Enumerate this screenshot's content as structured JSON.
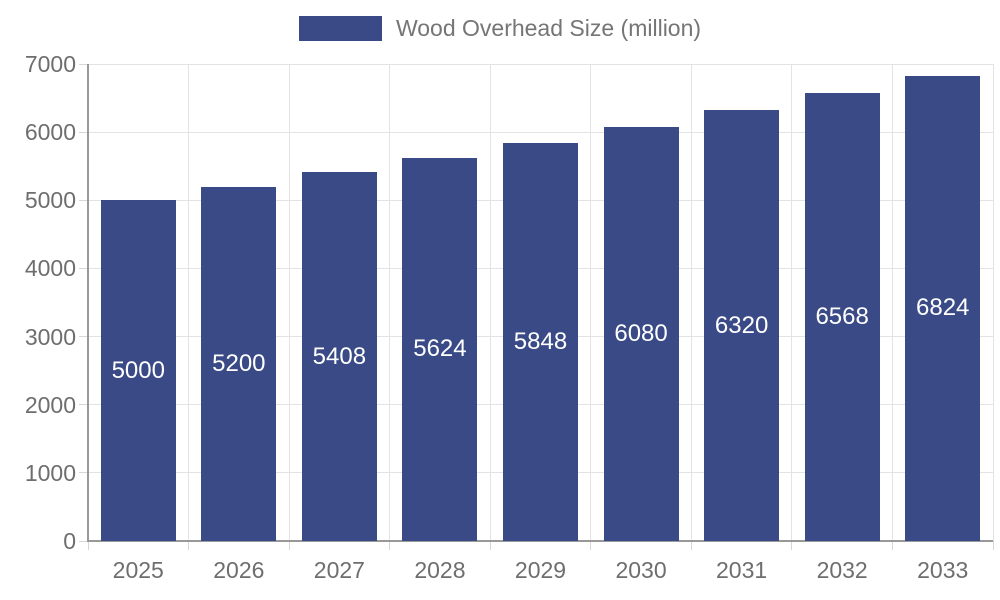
{
  "legend": {
    "label": "Wood Overhead Size (million)"
  },
  "chart_data": {
    "type": "bar",
    "title": "",
    "categories": [
      "2025",
      "2026",
      "2027",
      "2028",
      "2029",
      "2030",
      "2031",
      "2032",
      "2033"
    ],
    "values": [
      5000,
      5200,
      5408,
      5624,
      5848,
      6080,
      6320,
      6568,
      6824
    ],
    "series_name": "Wood Overhead Size (million)",
    "xlabel": "",
    "ylabel": "",
    "ylim": [
      0,
      7000
    ],
    "yticks": [
      0,
      1000,
      2000,
      3000,
      4000,
      5000,
      6000,
      7000
    ],
    "grid": true,
    "legend_position": "top-center",
    "value_label_position": "inside-center"
  },
  "colors": {
    "bar": "#3A4A86",
    "grid_line": "#E3E3E3",
    "axis_line": "#999999",
    "tick_mark": "#D6D6D6",
    "tick_label": "#6E6E6E",
    "legend_text": "#757575",
    "value_label": "#FFFFFF",
    "background": "#FFFFFF"
  }
}
